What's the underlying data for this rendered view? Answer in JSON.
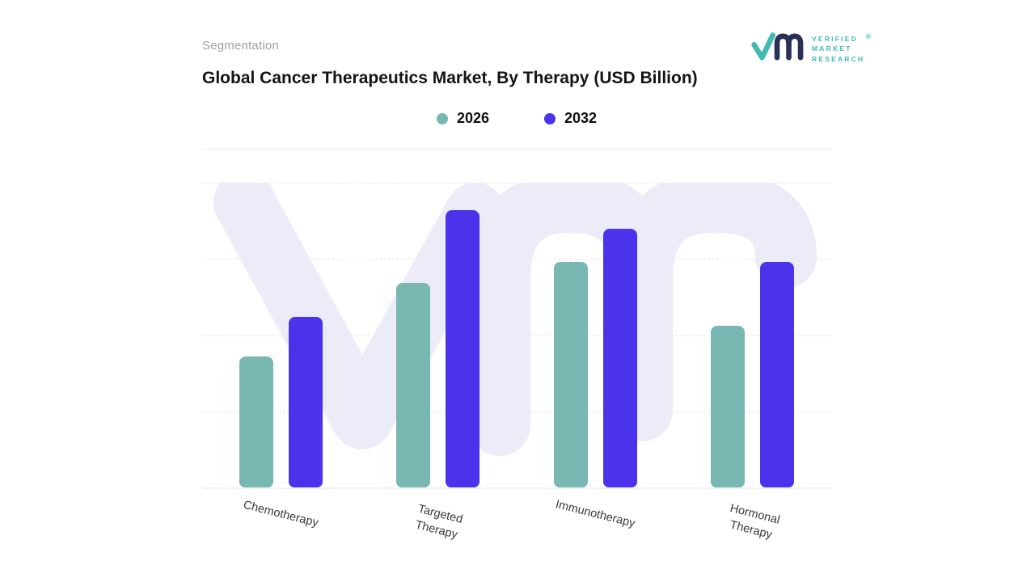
{
  "page": {
    "section_label": "Segmentation"
  },
  "logo": {
    "text_lines": [
      "VERIFIED",
      "MARKET",
      "RESEARCH"
    ],
    "registered_mark": "®",
    "mark_navy": "#2b3156",
    "mark_teal": "#43b9b1"
  },
  "chart_data": {
    "type": "bar",
    "title": "Global Cancer Therapeutics Market, By Therapy (USD Billion)",
    "categories": [
      "Chemotherapy",
      "Targeted Therapy",
      "Immunotherapy",
      "Hormonal Therapy"
    ],
    "series": [
      {
        "name": "2026",
        "color": "#79b7b2",
        "values": [
          43,
          67,
          74,
          53
        ]
      },
      {
        "name": "2032",
        "color": "#4a33ea",
        "values": [
          56,
          91,
          85,
          74
        ]
      }
    ],
    "xlabel": "",
    "ylabel": "",
    "ylim": [
      0,
      100
    ],
    "y_axis_tick_labels_visible": false,
    "values_unit": "relative bar height %, estimated (no numeric axis labels shown)",
    "legend_position": "top-center",
    "grid": "horizontal dashed lines",
    "watermark": "VMR monogram",
    "colors": {
      "grid": "#e4e4e8",
      "watermark": "#ecebf8",
      "axis_label": "#3a3a3a",
      "title": "#141414",
      "section_label": "#9ba1a9",
      "divider": "#ebebeb"
    }
  }
}
